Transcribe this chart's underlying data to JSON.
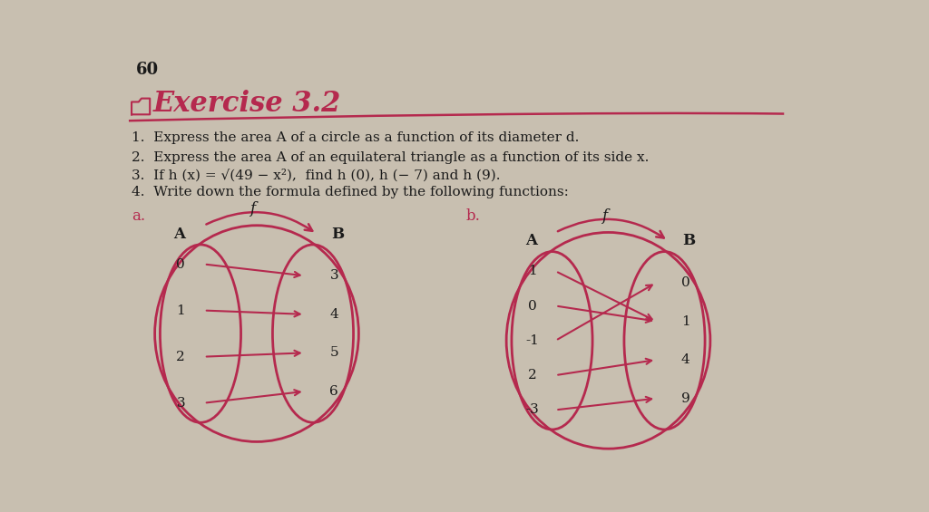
{
  "bg_color": "#c8bfb0",
  "title": "Exercise 3.2",
  "title_color": "#b5294e",
  "header_line_color": "#b5294e",
  "text_color": "#1a1a1a",
  "arrow_color": "#b5294e",
  "ellipse_color": "#b5294e",
  "page_number": "60",
  "diagram_a": {
    "label": "a.",
    "left_values": [
      "0",
      "1",
      "2",
      "3"
    ],
    "right_values": [
      "3",
      "4",
      "5",
      "6"
    ],
    "arrows": [
      [
        0,
        0
      ],
      [
        1,
        1
      ],
      [
        2,
        2
      ],
      [
        3,
        3
      ]
    ]
  },
  "diagram_b": {
    "label": "b.",
    "left_values": [
      "1",
      "0",
      "-1",
      "2",
      "-3"
    ],
    "right_values": [
      "0",
      "1",
      "4",
      "9"
    ],
    "arrows": [
      [
        0,
        1
      ],
      [
        1,
        1
      ],
      [
        2,
        0
      ],
      [
        3,
        2
      ],
      [
        4,
        3
      ]
    ]
  }
}
